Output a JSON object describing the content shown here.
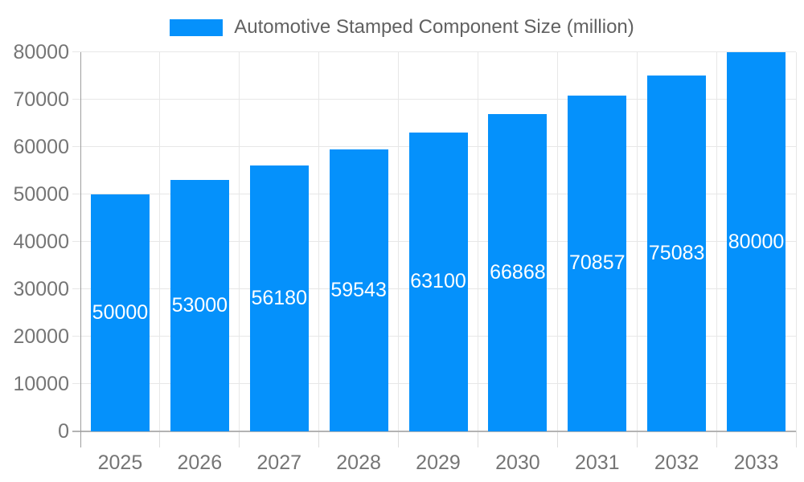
{
  "chart_data": {
    "type": "bar",
    "title": "Automotive Stamped Component Size (million)",
    "categories": [
      "2025",
      "2026",
      "2027",
      "2028",
      "2029",
      "2030",
      "2031",
      "2032",
      "2033"
    ],
    "values": [
      50000,
      53000,
      56180,
      59543,
      63100,
      66868,
      70857,
      75083,
      80000
    ],
    "bar_labels": [
      "50000",
      "53000",
      "56180",
      "59543",
      "63100",
      "66868",
      "70857",
      "75083",
      "80000"
    ],
    "ytick_labels": [
      "0",
      "10000",
      "20000",
      "30000",
      "40000",
      "50000",
      "60000",
      "70000",
      "80000"
    ],
    "xlabel": "",
    "ylabel": "",
    "ylim": [
      0,
      80000
    ],
    "ytick_step": 10000,
    "grid": true,
    "legend_position": "top",
    "colors": {
      "bar": "#0591fb",
      "bar_label": "#ffffff",
      "grid": "#e7e7e7",
      "y_axis_line": "#9e9e9e",
      "x_axis_line": "#b3b3b3",
      "tick_label": "#757575",
      "legend_text": "#616161",
      "background": "#ffffff"
    }
  }
}
